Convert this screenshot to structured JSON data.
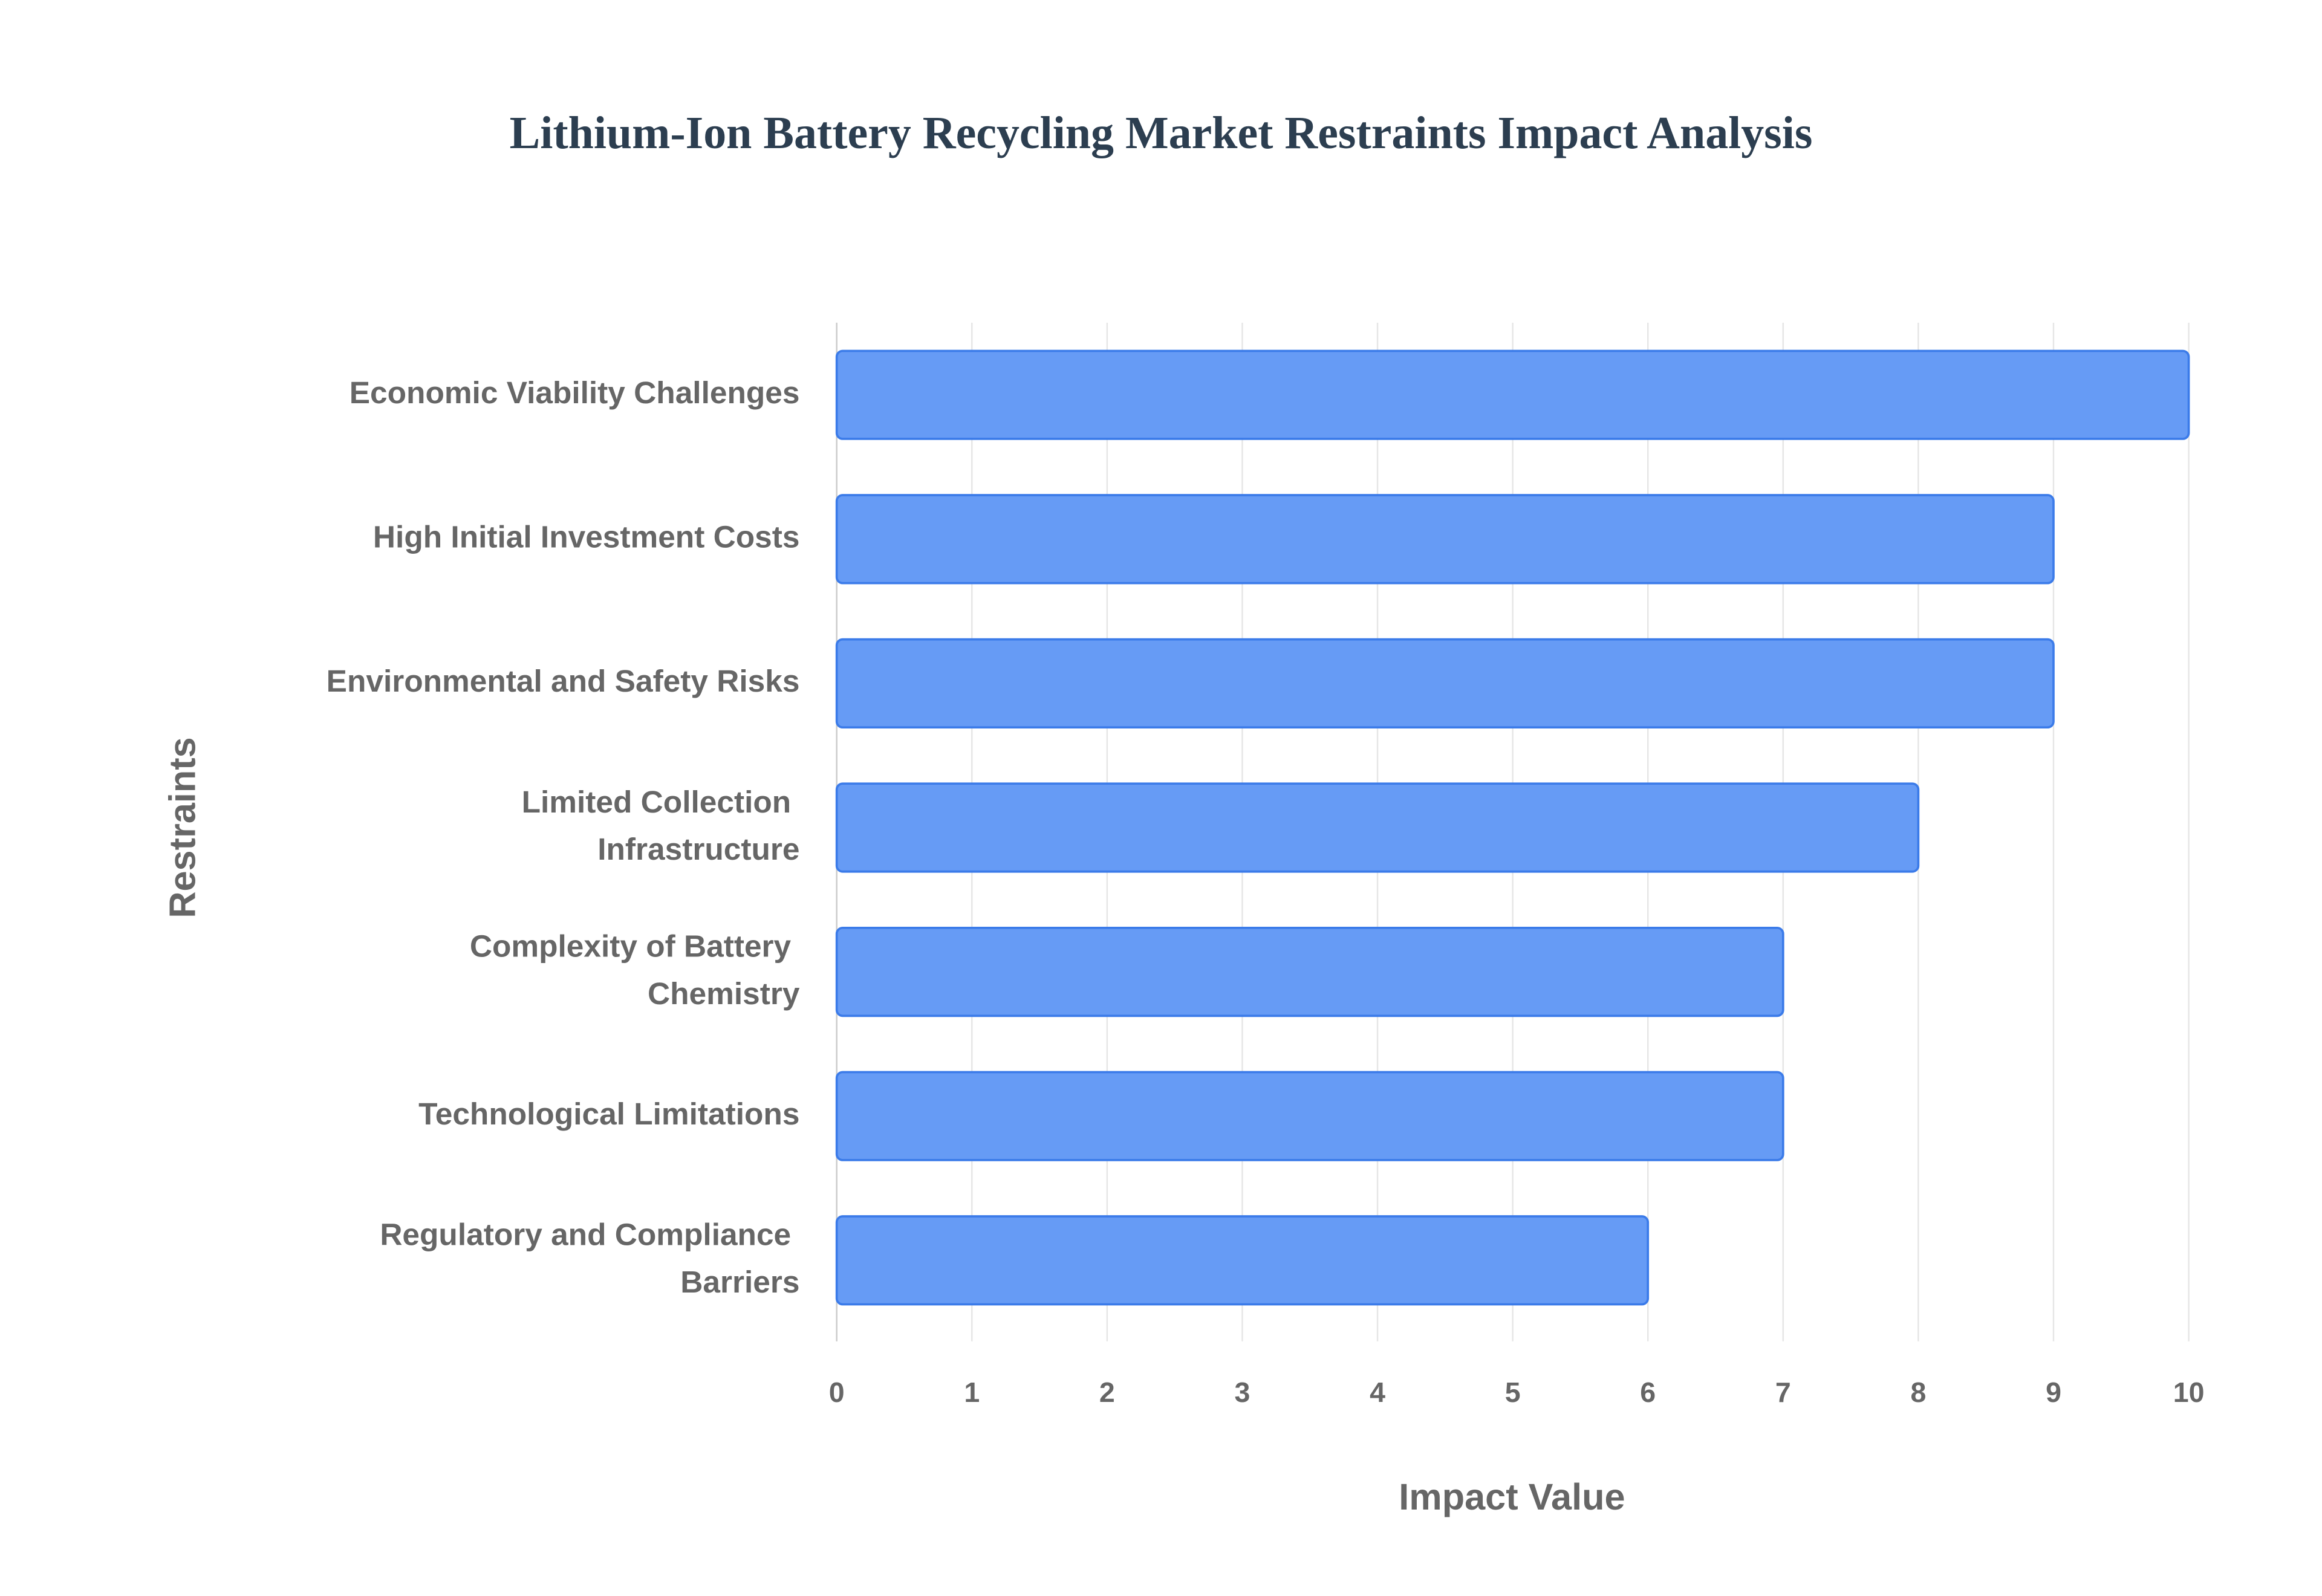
{
  "chart_data": {
    "type": "bar",
    "orientation": "horizontal",
    "title": "Lithium-Ion Battery Recycling Market Restraints Impact Analysis",
    "x_label": "Impact Value",
    "y_label": "Restraints",
    "categories": [
      "Economic Viability Challenges",
      "High Initial Investment Costs",
      "Environmental and Safety Risks",
      "Limited Collection Infrastructure",
      "Complexity of Battery Chemistry",
      "Technological Limitations",
      "Regulatory and Compliance Barriers"
    ],
    "values": [
      10,
      9,
      9,
      8,
      7,
      7,
      6
    ],
    "color": "#6399f5",
    "edge_color": "#3b7be9",
    "xlim": [
      0,
      10
    ],
    "xticks": [
      0,
      1,
      2,
      3,
      4,
      5,
      6,
      7,
      8,
      9,
      10
    ],
    "grid": true
  }
}
